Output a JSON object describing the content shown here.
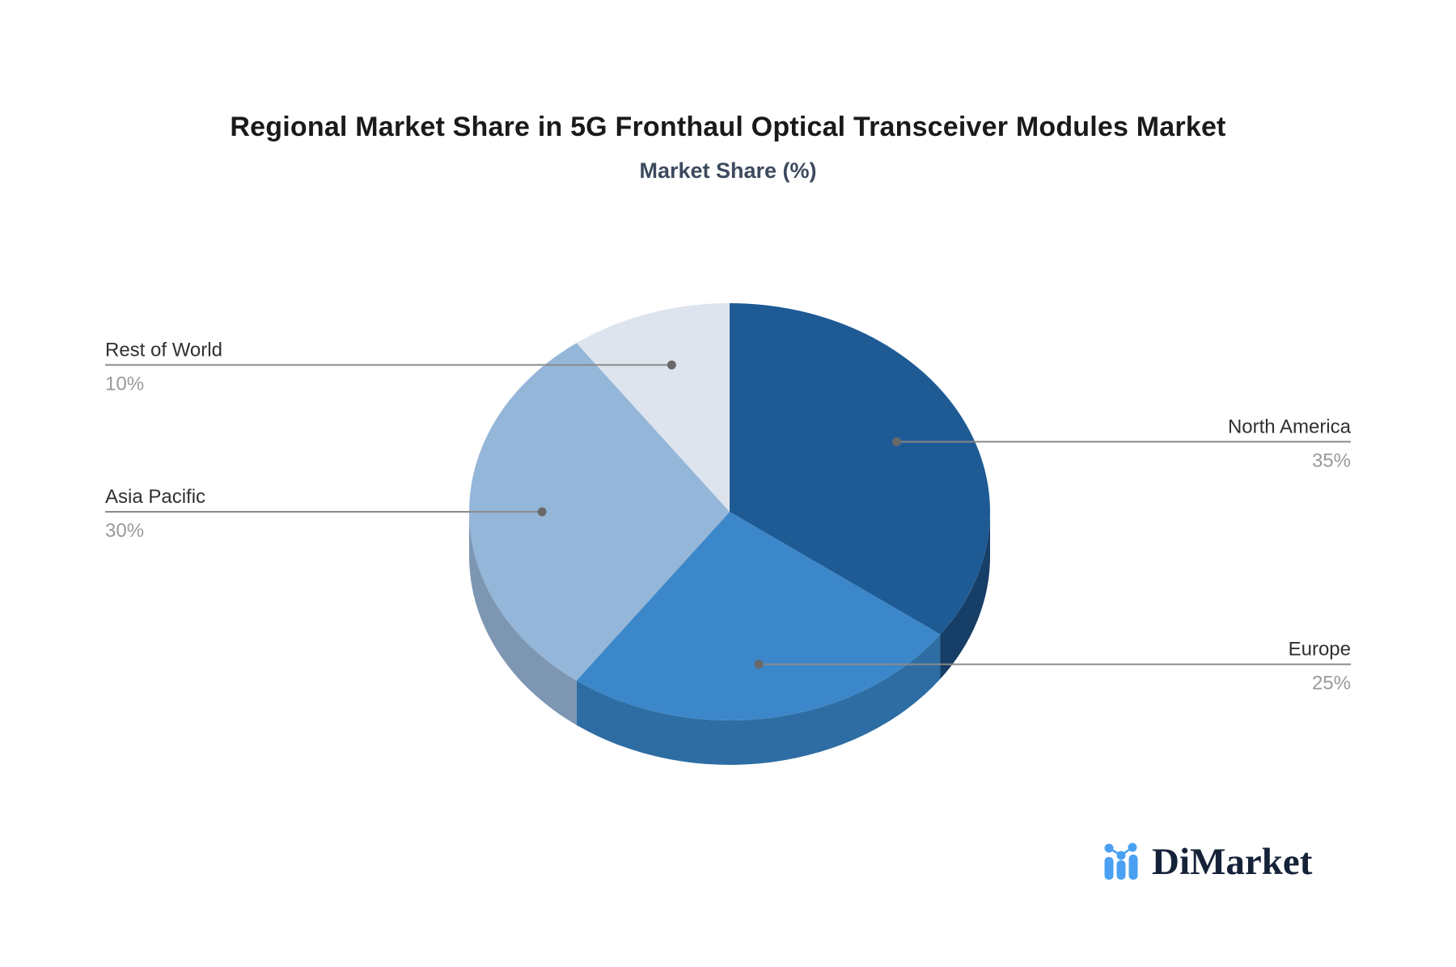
{
  "page": {
    "background": "#ffffff"
  },
  "header": {
    "title": "Regional Market Share in 5G Fronthaul Optical Transceiver Modules Market",
    "subtitle": "Market Share (%)"
  },
  "chart_data": {
    "type": "pie",
    "title": "Regional Market Share in 5G Fronthaul Optical Transceiver Modules Market",
    "subtitle": "Market Share (%)",
    "unit": "%",
    "start_angle_deg": 0,
    "direction": "clockwise",
    "effect_3d": true,
    "legend_position": "none",
    "slices": [
      {
        "label": "North America",
        "value": 35,
        "display": "35%",
        "color": "#1e5b95",
        "side_color": "#163e66",
        "label_side": "right"
      },
      {
        "label": "Europe",
        "value": 25,
        "display": "25%",
        "color": "#3c87c9",
        "side_color": "#2e6da3",
        "label_side": "right"
      },
      {
        "label": "Asia Pacific",
        "value": 30,
        "display": "30%",
        "color": "#94b6d9",
        "side_color": "#7d96b2",
        "label_side": "left"
      },
      {
        "label": "Rest of World",
        "value": 10,
        "display": "10%",
        "color": "#dde4ee",
        "side_color": "#b9c6d8",
        "label_side": "left"
      }
    ],
    "label_style": {
      "name_color": "#303030",
      "value_color": "#9a9a9a",
      "connector_color": "#8a8a8a",
      "dot_color": "#696969"
    }
  },
  "branding": {
    "logo_text": "DiMarket",
    "logo_icon": "bar-line-chart-icon",
    "logo_text_color": "#152238",
    "logo_accent_color": "#4aa0f2"
  }
}
